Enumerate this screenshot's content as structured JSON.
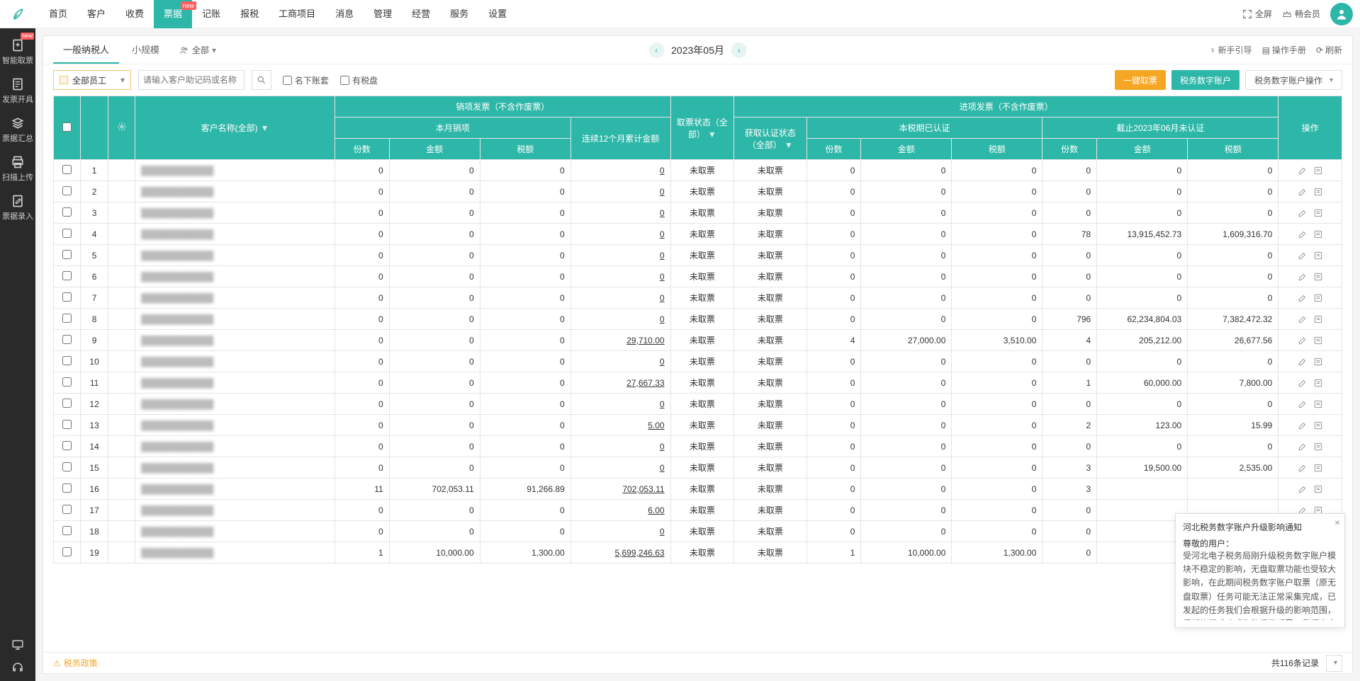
{
  "topnav": {
    "items": [
      "首页",
      "客户",
      "收费",
      "票据",
      "记账",
      "报税",
      "工商项目",
      "消息",
      "管理",
      "经营",
      "服务",
      "设置"
    ],
    "active_index": 3,
    "new_badge_indices": [
      3
    ],
    "right": {
      "fullscreen": "全屏",
      "member": "畅会员"
    }
  },
  "sidebar": {
    "items": [
      {
        "label": "智能取票",
        "icon": "plus-doc",
        "new": true
      },
      {
        "label": "发票开具",
        "icon": "doc"
      },
      {
        "label": "票据汇总",
        "icon": "stack"
      },
      {
        "label": "扫描上传",
        "icon": "printer"
      },
      {
        "label": "票据录入",
        "icon": "edit-doc"
      }
    ]
  },
  "tabs": {
    "items": [
      "一般纳税人",
      "小规模"
    ],
    "active_index": 0,
    "scope_label": "全部",
    "date_label": "2023年05月",
    "right_links": {
      "guide": "新手引导",
      "manual": "操作手册",
      "refresh": "刷新"
    }
  },
  "filters": {
    "staff_select": "全部员工",
    "search_placeholder": "请输入客户助记码或名称",
    "cb_under_account": "名下账套",
    "cb_has_disk": "有税盘",
    "btn_one_key": "一键取票",
    "btn_tax_acct": "税务数字账户",
    "btn_tax_op": "税务数字账户操作"
  },
  "table": {
    "group_headers": {
      "sales": "销项发票（不含作废票）",
      "purchase": "进项发票（不含作废票）",
      "month_sales": "本月销项",
      "cum12": "连续12个月累计金额",
      "ticket_status": "取票状态（全部）",
      "certified": "本税期已认证",
      "uncertified": "截止2023年06月未认证",
      "cert_status": "获取认证状态（全部）",
      "ops": "操作"
    },
    "leaf_headers": {
      "customer": "客户名称(全部)",
      "count": "份数",
      "amount": "金额",
      "tax": "税额"
    },
    "rows": [
      {
        "idx": 1,
        "c1": 0,
        "c2": 0,
        "c3": 0,
        "cum": "0",
        "ts": "未取票",
        "cs": "未取票",
        "p1": 0,
        "p2": 0,
        "p3": 0,
        "u1": 0,
        "u2": 0,
        "u3": 0
      },
      {
        "idx": 2,
        "c1": 0,
        "c2": 0,
        "c3": 0,
        "cum": "0",
        "ts": "未取票",
        "cs": "未取票",
        "p1": 0,
        "p2": 0,
        "p3": 0,
        "u1": 0,
        "u2": 0,
        "u3": 0
      },
      {
        "idx": 3,
        "c1": 0,
        "c2": 0,
        "c3": 0,
        "cum": "0",
        "ts": "未取票",
        "cs": "未取票",
        "p1": 0,
        "p2": 0,
        "p3": 0,
        "u1": 0,
        "u2": 0,
        "u3": 0
      },
      {
        "idx": 4,
        "c1": 0,
        "c2": 0,
        "c3": 0,
        "cum": "0",
        "ts": "未取票",
        "cs": "未取票",
        "p1": 0,
        "p2": 0,
        "p3": 0,
        "u1": 78,
        "u2": "13,915,452.73",
        "u3": "1,609,316.70"
      },
      {
        "idx": 5,
        "c1": 0,
        "c2": 0,
        "c3": 0,
        "cum": "0",
        "ts": "未取票",
        "cs": "未取票",
        "p1": 0,
        "p2": 0,
        "p3": 0,
        "u1": 0,
        "u2": 0,
        "u3": 0
      },
      {
        "idx": 6,
        "c1": 0,
        "c2": 0,
        "c3": 0,
        "cum": "0",
        "ts": "未取票",
        "cs": "未取票",
        "p1": 0,
        "p2": 0,
        "p3": 0,
        "u1": 0,
        "u2": 0,
        "u3": 0
      },
      {
        "idx": 7,
        "c1": 0,
        "c2": 0,
        "c3": 0,
        "cum": "0",
        "ts": "未取票",
        "cs": "未取票",
        "p1": 0,
        "p2": 0,
        "p3": 0,
        "u1": 0,
        "u2": 0,
        "u3": 0
      },
      {
        "idx": 8,
        "c1": 0,
        "c2": 0,
        "c3": 0,
        "cum": "0",
        "ts": "未取票",
        "cs": "未取票",
        "p1": 0,
        "p2": 0,
        "p3": 0,
        "u1": 796,
        "u2": "62,234,804.03",
        "u3": "7,382,472.32"
      },
      {
        "idx": 9,
        "c1": 0,
        "c2": 0,
        "c3": 0,
        "cum": "29,710.00",
        "ts": "未取票",
        "cs": "未取票",
        "p1": 4,
        "p2": "27,000.00",
        "p3": "3,510.00",
        "u1": 4,
        "u2": "205,212.00",
        "u3": "26,677.56"
      },
      {
        "idx": 10,
        "c1": 0,
        "c2": 0,
        "c3": 0,
        "cum": "0",
        "ts": "未取票",
        "cs": "未取票",
        "p1": 0,
        "p2": 0,
        "p3": 0,
        "u1": 0,
        "u2": 0,
        "u3": 0
      },
      {
        "idx": 11,
        "c1": 0,
        "c2": 0,
        "c3": 0,
        "cum": "27,667.33",
        "ts": "未取票",
        "cs": "未取票",
        "p1": 0,
        "p2": 0,
        "p3": 0,
        "u1": 1,
        "u2": "60,000.00",
        "u3": "7,800.00"
      },
      {
        "idx": 12,
        "c1": 0,
        "c2": 0,
        "c3": 0,
        "cum": "0",
        "ts": "未取票",
        "cs": "未取票",
        "p1": 0,
        "p2": 0,
        "p3": 0,
        "u1": 0,
        "u2": 0,
        "u3": 0
      },
      {
        "idx": 13,
        "c1": 0,
        "c2": 0,
        "c3": 0,
        "cum": "5.00",
        "ts": "未取票",
        "cs": "未取票",
        "p1": 0,
        "p2": 0,
        "p3": 0,
        "u1": 2,
        "u2": "123.00",
        "u3": "15.99"
      },
      {
        "idx": 14,
        "c1": 0,
        "c2": 0,
        "c3": 0,
        "cum": "0",
        "ts": "未取票",
        "cs": "未取票",
        "p1": 0,
        "p2": 0,
        "p3": 0,
        "u1": 0,
        "u2": 0,
        "u3": 0
      },
      {
        "idx": 15,
        "c1": 0,
        "c2": 0,
        "c3": 0,
        "cum": "0",
        "ts": "未取票",
        "cs": "未取票",
        "p1": 0,
        "p2": 0,
        "p3": 0,
        "u1": 3,
        "u2": "19,500.00",
        "u3": "2,535.00"
      },
      {
        "idx": 16,
        "c1": 11,
        "c2": "702,053.11",
        "c3": "91,266.89",
        "cum": "702,053.11",
        "ts": "未取票",
        "cs": "未取票",
        "p1": 0,
        "p2": 0,
        "p3": 0,
        "u1": 3,
        "u2": "",
        "u3": ""
      },
      {
        "idx": 17,
        "c1": 0,
        "c2": 0,
        "c3": 0,
        "cum": "6.00",
        "ts": "未取票",
        "cs": "未取票",
        "p1": 0,
        "p2": 0,
        "p3": 0,
        "u1": 0,
        "u2": "",
        "u3": ""
      },
      {
        "idx": 18,
        "c1": 0,
        "c2": 0,
        "c3": 0,
        "cum": "0",
        "ts": "未取票",
        "cs": "未取票",
        "p1": 0,
        "p2": 0,
        "p3": 0,
        "u1": 0,
        "u2": "",
        "u3": ""
      },
      {
        "idx": 19,
        "c1": 1,
        "c2": "10,000.00",
        "c3": "1,300.00",
        "cum": "5,699,246.63",
        "ts": "未取票",
        "cs": "未取票",
        "p1": 1,
        "p2": "10,000.00",
        "p3": "1,300.00",
        "u1": 0,
        "u2": "",
        "u3": ""
      }
    ]
  },
  "footer": {
    "policy": "税务政策",
    "total_records": "共116条记录"
  },
  "notif": {
    "title": "河北税务数字账户升级影响通知",
    "greet": "尊敬的用户：",
    "body": "受河北电子税务局刚升级税务数字账户模块不稳定的影响，无盘取票功能也受较大影响，在此期间税务数字账户取票（原无盘取票）任务可能无法正常采集完成，已发起的任务我们会根据升级的影响范围，重新执行成功或失败提示返回；我们也会结合"
  },
  "colors": {
    "teal": "#2db7a8",
    "orange": "#f5a623",
    "sidebar_bg": "#2a2a2a",
    "border": "#e5e5e5"
  }
}
